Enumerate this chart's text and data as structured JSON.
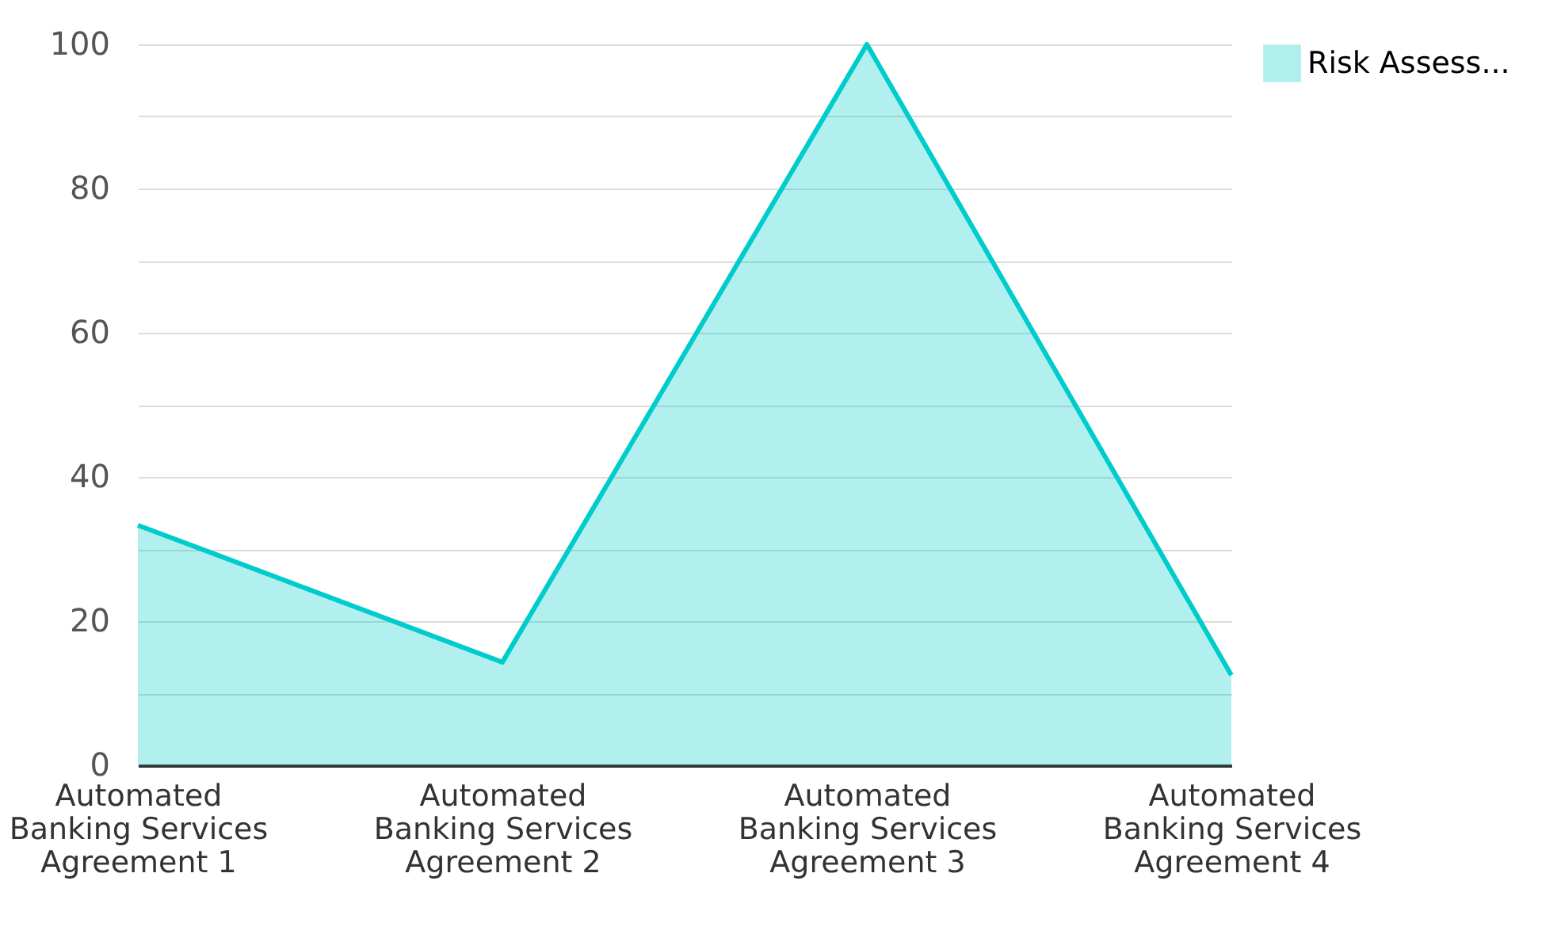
{
  "chart_data": {
    "type": "area",
    "categories": [
      "Automated Banking Services Agreement 1",
      "Automated Banking Services Agreement 2",
      "Automated Banking Services Agreement 3",
      "Automated Banking Services Agreement 4"
    ],
    "series": [
      {
        "name": "Risk Assess...",
        "color": "#00cccc",
        "values": [
          33.3,
          14.3,
          100,
          12.5
        ]
      }
    ],
    "ylim": [
      0,
      100
    ],
    "yticks": [
      0,
      {
        "value": 10,
        "label": null
      },
      20,
      {
        "value": 30,
        "label": null
      },
      40,
      {
        "value": 50,
        "label": null
      },
      60,
      {
        "value": 70,
        "label": null
      },
      80,
      {
        "value": 90,
        "label": null
      },
      100
    ],
    "grid": "y",
    "legend": "top right"
  }
}
